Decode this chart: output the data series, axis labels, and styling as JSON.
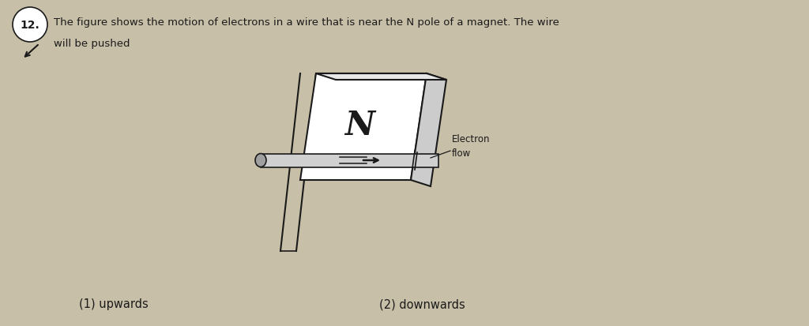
{
  "bg_color": "#c8bfa8",
  "text_color": "#1a1a1a",
  "question_number": "12.",
  "question_text_line1": "The figure shows the motion of electrons in a wire that is near the N pole of a magnet. The wire",
  "question_text_line2": "will be pushed",
  "option1": "(1) upwards",
  "option2": "(2) downwards",
  "electron_flow_label": "Electron\nflow",
  "N_label": "N",
  "fig_width": 10.24,
  "fig_height": 4.14,
  "dpi": 100
}
